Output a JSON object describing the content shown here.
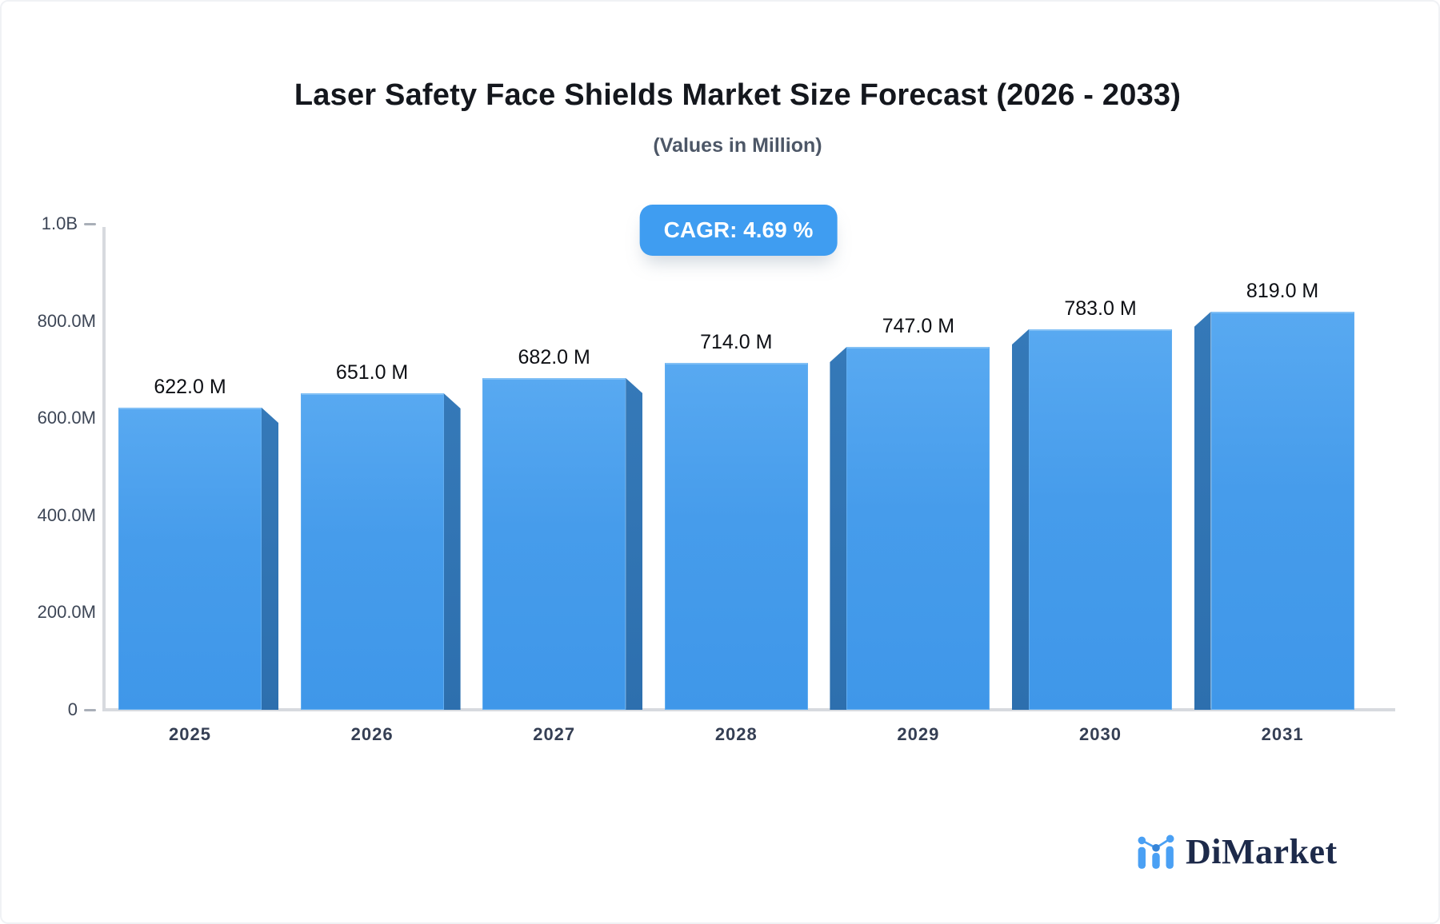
{
  "chart": {
    "title": "Laser Safety Face Shields Market Size Forecast (2026 - 2033)",
    "subtitle": "(Values in Million)",
    "cagr_label": "CAGR: 4.69 %"
  },
  "chart_data": {
    "type": "bar",
    "title": "Laser Safety Face Shields Market Size Forecast (2026 - 2033)",
    "subtitle": "(Values in Million)",
    "cagr_percent": 4.69,
    "categories": [
      "2025",
      "2026",
      "2027",
      "2028",
      "2029",
      "2030",
      "2031"
    ],
    "values": [
      622,
      651,
      682,
      714,
      747,
      783,
      819
    ],
    "value_labels": [
      "622.0 M",
      "651.0 M",
      "682.0 M",
      "714.0 M",
      "747.0 M",
      "783.0 M",
      "819.0 M"
    ],
    "xlabel": "",
    "ylabel": "",
    "ylim": [
      0,
      1000
    ],
    "grid": false,
    "legend": "none",
    "y_ticks": [
      {
        "label": "1.0B",
        "value": 1000,
        "dash": true
      },
      {
        "label": "800.0M",
        "value": 800,
        "dash": false
      },
      {
        "label": "600.0M",
        "value": 600,
        "dash": false
      },
      {
        "label": "400.0M",
        "value": 400,
        "dash": false
      },
      {
        "label": "200.0M",
        "value": 200,
        "dash": false
      },
      {
        "label": "0",
        "value": 0,
        "dash": true
      }
    ],
    "colors": {
      "bar_face": "#469ceb",
      "bar_face_light": "#58a9f1",
      "bar_side": "#2e72b2",
      "badge_background": "#3f9df1",
      "badge_text": "#ffffff",
      "axis_line": "#d7dadf",
      "axis_text": "#3d4656",
      "value_text": "#0d0f14",
      "logo_blue": "#4aa0f4",
      "logo_navy": "#1d2a4a"
    }
  },
  "footer": {
    "logo_text": "DiMarket"
  }
}
